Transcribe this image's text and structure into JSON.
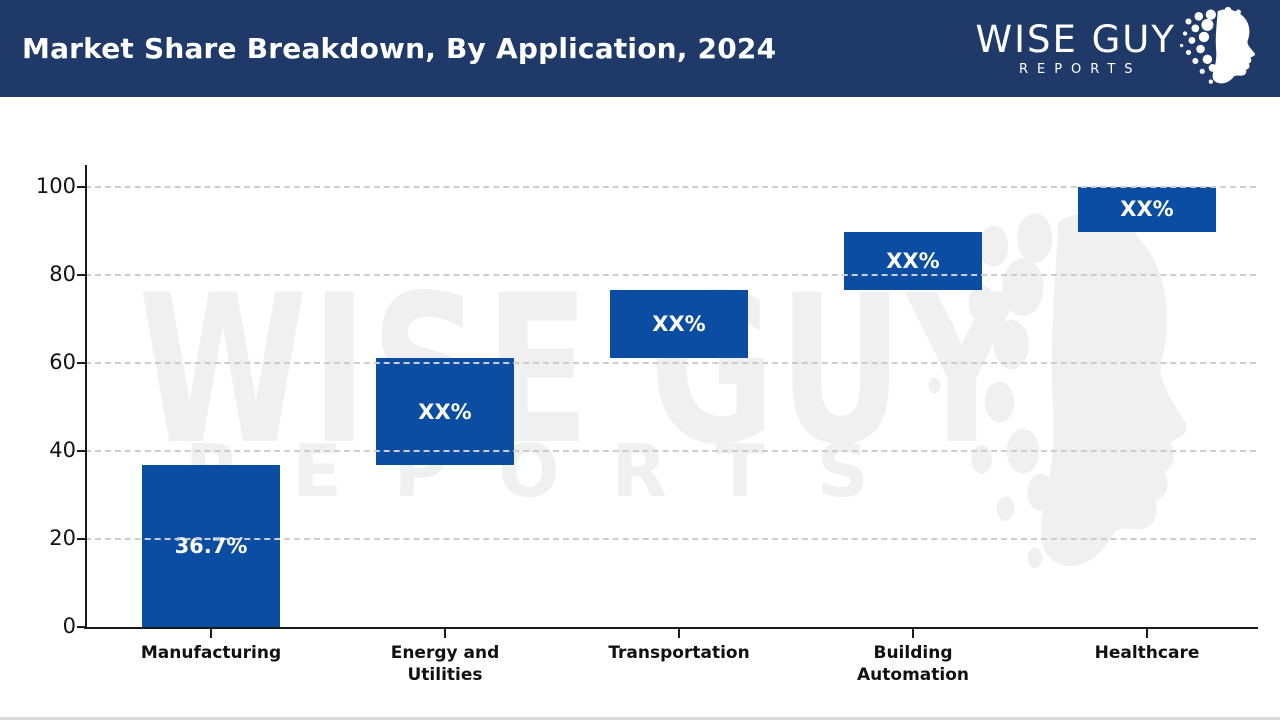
{
  "header": {
    "title": "Market Share Breakdown, By Application, 2024",
    "bg_color": "#1f3a68",
    "logo": {
      "line1": "WISE GUY",
      "line2": "REPORTS"
    }
  },
  "watermark": {
    "line1": "WISE GUY",
    "line2": "REPORTS"
  },
  "chart_data": {
    "type": "bar",
    "subtype": "waterfall",
    "title": "Market Share Breakdown, By Application, 2024",
    "categories": [
      "Manufacturing",
      "Energy and\nUtilities",
      "Transportation",
      "Building\nAutomation",
      "Healthcare"
    ],
    "segments": [
      {
        "category": "Manufacturing",
        "start": 0,
        "end": 36.7,
        "label": "36.7%"
      },
      {
        "category": "Energy and Utilities",
        "start": 36.7,
        "end": 61.1,
        "label": "XX%"
      },
      {
        "category": "Transportation",
        "start": 61.1,
        "end": 76.5,
        "label": "XX%"
      },
      {
        "category": "Building Automation",
        "start": 76.5,
        "end": 89.7,
        "label": "XX%"
      },
      {
        "category": "Healthcare",
        "start": 89.7,
        "end": 100,
        "label": "XX%"
      }
    ],
    "ylim": [
      0,
      105
    ],
    "yticks": [
      0,
      20,
      40,
      60,
      80,
      100
    ],
    "xlabel": "",
    "ylabel": "",
    "grid": "horizontal-dashed",
    "legend": "none",
    "bar_color": "#0b4da2",
    "bar_label_color": "#ffffff",
    "axis_color": "#1a1a1a",
    "gridline_color": "#cdcdcd"
  }
}
